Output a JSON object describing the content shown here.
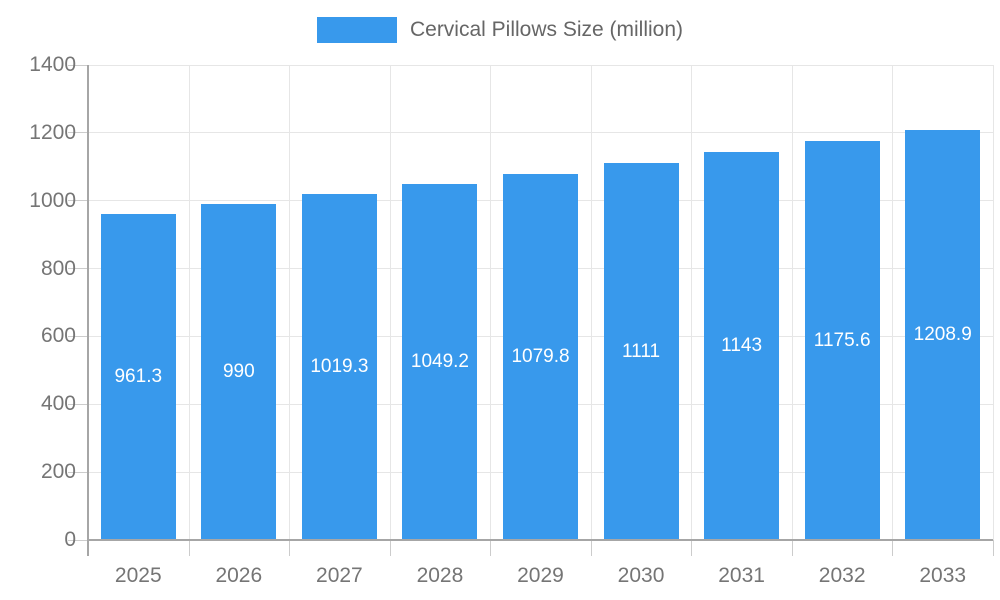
{
  "chart_data": {
    "type": "bar",
    "legend": "Cervical Pillows Size (million)",
    "legend_position": "top-center",
    "categories": [
      "2025",
      "2026",
      "2027",
      "2028",
      "2029",
      "2030",
      "2031",
      "2032",
      "2033"
    ],
    "values": [
      961.3,
      990,
      1019.3,
      1049.2,
      1079.8,
      1111,
      1143,
      1175.6,
      1208.9
    ],
    "value_labels": [
      "961.3",
      "990",
      "1019.3",
      "1049.2",
      "1079.8",
      "1111",
      "1143",
      "1175.6",
      "1208.9"
    ],
    "xlabel": "",
    "ylabel": "",
    "ylim": [
      0,
      1400
    ],
    "yticks": [
      0,
      200,
      400,
      600,
      800,
      1000,
      1200,
      1400
    ],
    "grid": true,
    "colors": {
      "bar": "#3899ec",
      "value_label": "#ffffff",
      "axis_text": "#757575",
      "legend_text": "#666666",
      "gridline": "#e6e6e6",
      "axis_line": "#a6a6a6",
      "tick": "#cccccc"
    }
  }
}
